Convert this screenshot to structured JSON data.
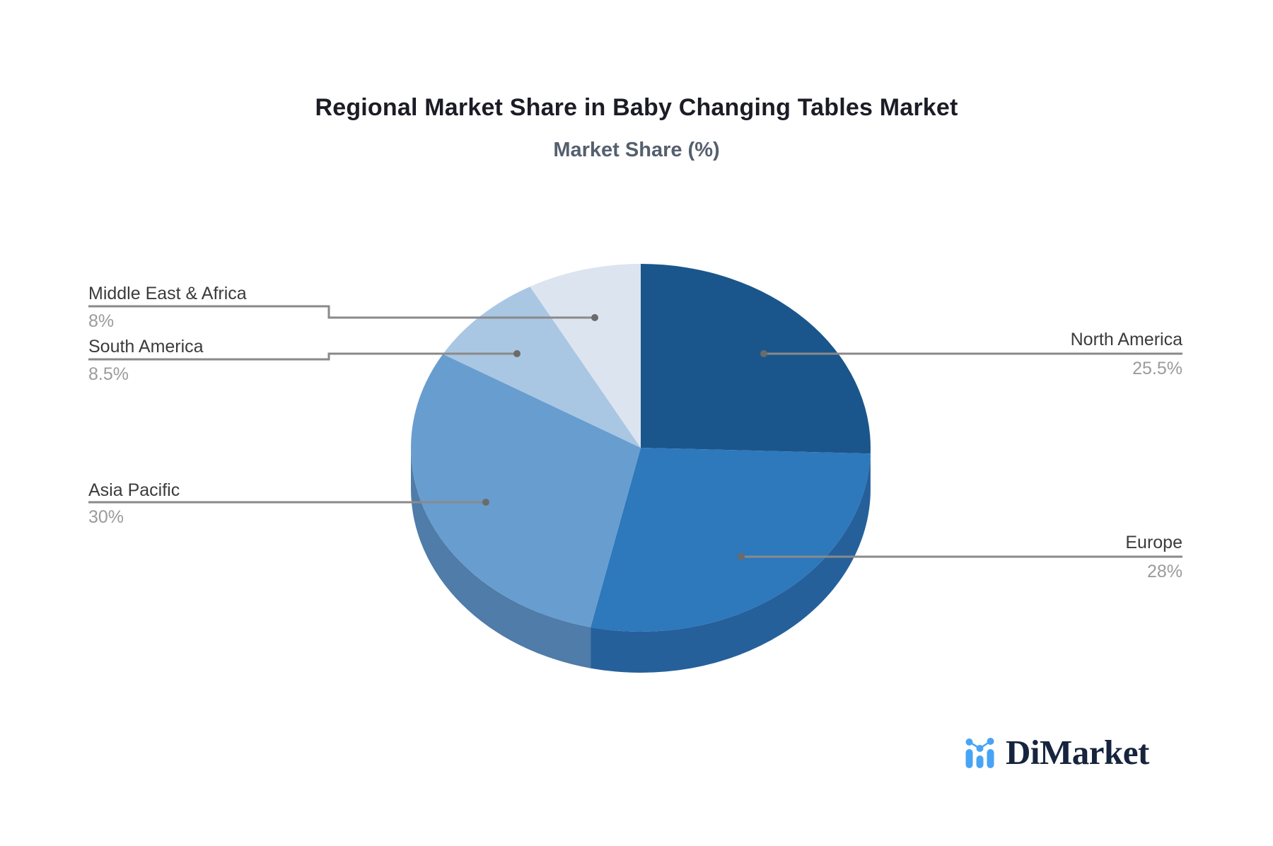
{
  "page": {
    "background": "#ffffff"
  },
  "chart_data": {
    "type": "pie",
    "title": "Regional Market Share in Baby Changing Tables Market",
    "subtitle": "Market Share (%)",
    "unit": "%",
    "direction": "clockwise",
    "start_angle_deg": 0,
    "style": "3d-pie",
    "labels_position": "callout-leader-lines",
    "legend": "none",
    "series": [
      {
        "label": "North America",
        "value": 25.5,
        "display_value": "25.5%",
        "color": "#1A568C",
        "side_color": "#154876",
        "callout_side": "right"
      },
      {
        "label": "Europe",
        "value": 28,
        "display_value": "28%",
        "color": "#2E78BC",
        "side_color": "#25609B",
        "callout_side": "right"
      },
      {
        "label": "Asia Pacific",
        "value": 30,
        "display_value": "30%",
        "color": "#689DD0",
        "side_color": "#4F7CA8",
        "callout_side": "left"
      },
      {
        "label": "South America",
        "value": 8.5,
        "display_value": "8.5%",
        "color": "#A9C7E3",
        "side_color": "#8FACC9",
        "callout_side": "left"
      },
      {
        "label": "Middle East & Africa",
        "value": 8,
        "display_value": "8%",
        "color": "#DCE4EF",
        "side_color": "#BCC8D6",
        "callout_side": "left"
      }
    ],
    "leader_line_color": "#8A8A8A",
    "leader_dot_color": "#6B6B6B",
    "label_text_color": "#3B3B3B",
    "value_text_color": "#9B9B9B"
  },
  "branding": {
    "logo_text": "DiMarket",
    "logo_icon": "bar-line-chart-icon",
    "icon_color": "#47A4F5",
    "text_color": "#16243D"
  }
}
